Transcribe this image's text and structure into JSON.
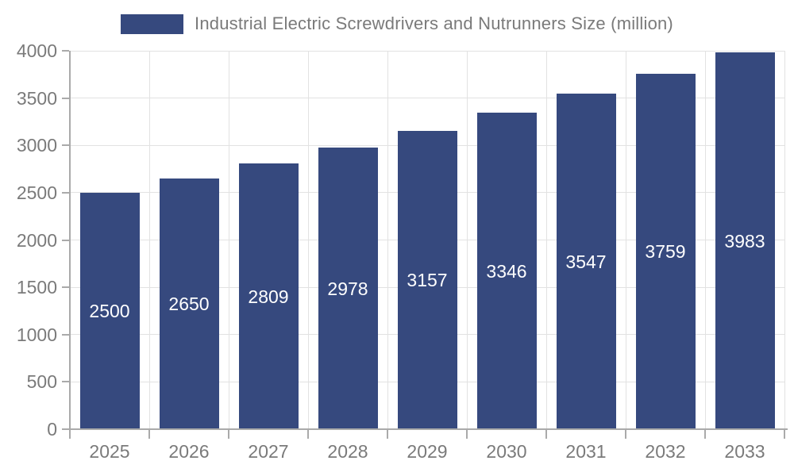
{
  "chart_data": {
    "type": "bar",
    "title": "Industrial Electric Screwdrivers and Nutrunners Size (million)",
    "categories": [
      "2025",
      "2026",
      "2027",
      "2028",
      "2029",
      "2030",
      "2031",
      "2032",
      "2033"
    ],
    "values": [
      2500,
      2650,
      2809,
      2978,
      3157,
      3346,
      3547,
      3759,
      3983
    ],
    "xlabel": "",
    "ylabel": "",
    "ylim": [
      0,
      4000
    ],
    "yticks": [
      0,
      500,
      1000,
      1500,
      2000,
      2500,
      3000,
      3500,
      4000
    ],
    "grid": true,
    "legend_position": "top",
    "bar_labels_inside": true
  },
  "colors": {
    "bar": "#36497e",
    "bar_label": "#ffffff",
    "axis_text": "#7a7a7a",
    "grid_line": "#e2e2e2",
    "axis_line": "#aaaaaa"
  }
}
